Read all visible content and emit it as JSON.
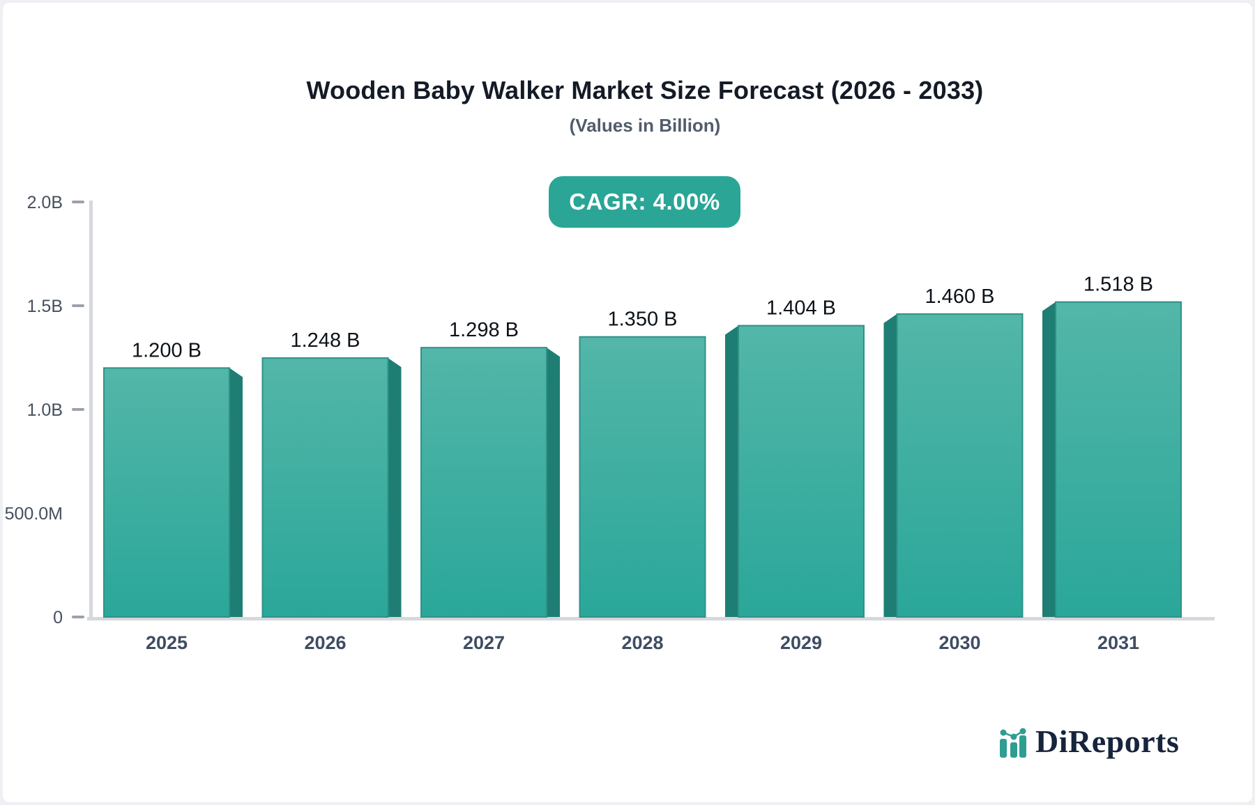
{
  "chart_data": {
    "type": "bar",
    "title": "Wooden Baby Walker Market Size Forecast (2026 - 2033)",
    "subtitle": "(Values in Billion)",
    "cagr_label": "CAGR: 4.00%",
    "categories": [
      "2025",
      "2026",
      "2027",
      "2028",
      "2029",
      "2030",
      "2031"
    ],
    "values": [
      1.2,
      1.248,
      1.298,
      1.35,
      1.404,
      1.46,
      1.518
    ],
    "value_labels": [
      "1.200 B",
      "1.248 B",
      "1.298 B",
      "1.350 B",
      "1.404 B",
      "1.460 B",
      "1.518 B"
    ],
    "unit": "Billion",
    "ylim": [
      0,
      2.0
    ],
    "yticks": [
      {
        "label": "2.0B",
        "value": 2.0,
        "dash": true
      },
      {
        "label": "1.5B",
        "value": 1.5,
        "dash": true
      },
      {
        "label": "1.0B",
        "value": 1.0,
        "dash": true
      },
      {
        "label": "500.0M",
        "value": 0.5,
        "dash": false
      },
      {
        "label": "0",
        "value": 0.0,
        "dash": true
      }
    ],
    "grid": false,
    "legend": false,
    "bar_style": "3d-perspective-center-vanishing",
    "colors": {
      "bar_top": "#53b6a8",
      "bar_bottom": "#2aa79a",
      "bar_side": "#1f7e73",
      "bar_stroke": "#2e9288",
      "axis_line": "#d5d8dc",
      "tick_dash": "#9ba2ac",
      "tick_text": "#45505e",
      "x_label_text": "#3f4d63",
      "value_label_text": "#0c1218",
      "badge_bg": "#2aa596",
      "badge_text": "#ffffff"
    }
  },
  "logo": {
    "text": "DiReports",
    "icon": "bar-chart-trend-icon",
    "teal": "#2f9d92",
    "navy": "#16243c"
  }
}
